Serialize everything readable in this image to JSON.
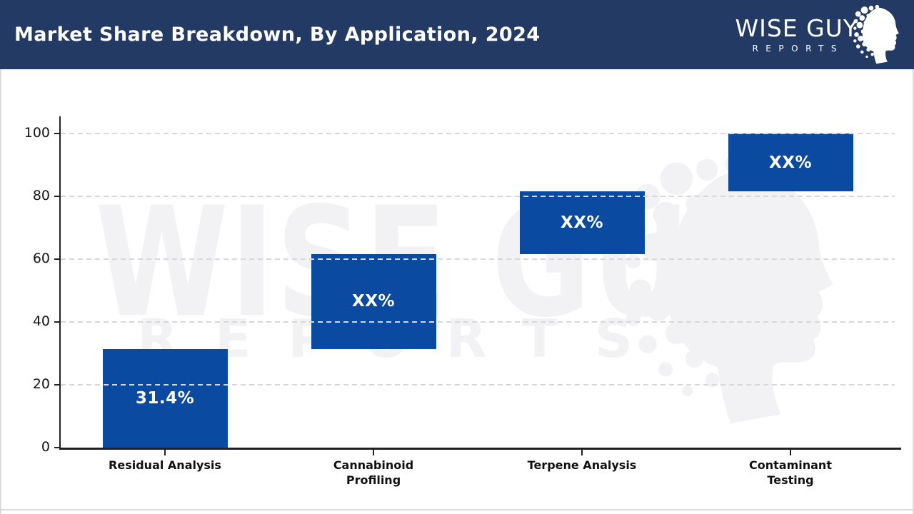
{
  "header": {
    "title": "Market Share Breakdown, By Application, 2024",
    "background_color": "#233a64",
    "logo": {
      "line1": "WISE GUY",
      "line2": "REPORTS",
      "icon": "dotted-head-profile"
    }
  },
  "watermark": {
    "line1": "WISE GUY",
    "line2": "REPORTS",
    "icon": "dotted-head-profile"
  },
  "chart_data": {
    "type": "bar",
    "variant": "waterfall",
    "title": "Market Share Breakdown, By Application, 2024",
    "categories": [
      "Residual Analysis",
      "Cannabinoid\nProfiling",
      "Terpene Analysis",
      "Contaminant\nTesting"
    ],
    "segments": [
      {
        "category": "Residual Analysis",
        "start": 0,
        "end": 31.4,
        "label": "31.4%"
      },
      {
        "category": "Cannabinoid Profiling",
        "start": 31.4,
        "end": 61.7,
        "label": "XX%"
      },
      {
        "category": "Terpene Analysis",
        "start": 61.7,
        "end": 81.5,
        "label": "XX%"
      },
      {
        "category": "Contaminant Testing",
        "start": 81.5,
        "end": 100,
        "label": "XX%"
      }
    ],
    "yticks": [
      0,
      20,
      40,
      60,
      80,
      100
    ],
    "ylim": [
      0,
      105.5
    ],
    "xlabel": "",
    "ylabel": "",
    "legend": "none",
    "grid": "dashed-horizontal-over-bars",
    "bar_color": "#0a4aa0",
    "bar_label_color": "#ffffff",
    "grid_color": "#d7d7d9",
    "axis_color": "#212121"
  }
}
